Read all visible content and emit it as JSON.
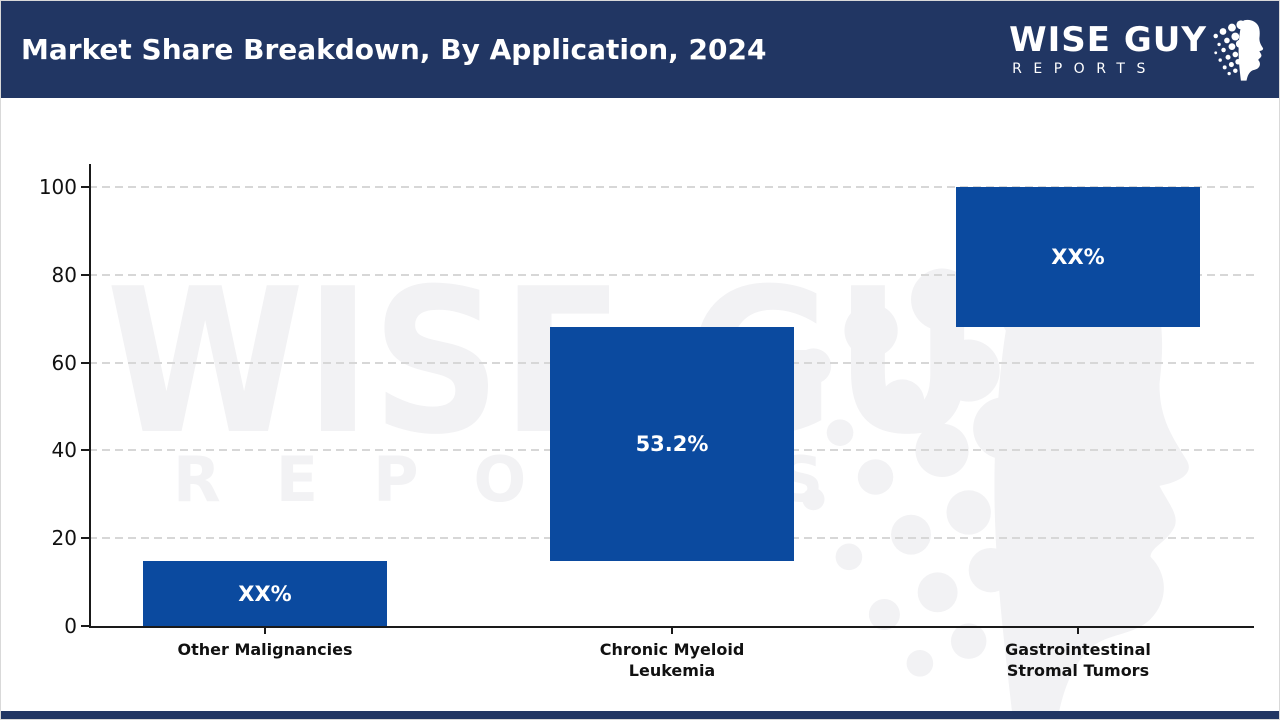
{
  "header": {
    "title": "Market Share Breakdown, By Application, 2024",
    "logo_line1": "WISE GUY",
    "logo_line2": "REPORTS"
  },
  "watermark": {
    "line1": "WISE GUY",
    "line2": "REPORTS"
  },
  "colors": {
    "header_bg": "#213663",
    "bar": "#0b4a9f",
    "bar_label": "#ffffff",
    "grid": "#d7d7d7",
    "axis": "#1a1a1a",
    "watermark": "#f2f2f4"
  },
  "chart_data": {
    "type": "bar",
    "subtype": "floating_segment_bars",
    "title": "Market Share Breakdown, By Application, 2024",
    "unit": "%",
    "categories": [
      "Other Malignancies",
      "Chronic Myeloid Leukemia",
      "Gastrointestinal Stromal Tumors"
    ],
    "category_lines": [
      [
        "Other Malignancies"
      ],
      [
        "Chronic Myeloid",
        "Leukemia"
      ],
      [
        "Gastrointestinal",
        "Stromal Tumors"
      ]
    ],
    "segments": [
      {
        "category": "Other Malignancies",
        "from": 0,
        "to": 14.8,
        "label": "XX%"
      },
      {
        "category": "Chronic Myeloid Leukemia",
        "from": 14.8,
        "to": 68,
        "label": "53.2%"
      },
      {
        "category": "Gastrointestinal Stromal Tumors",
        "from": 68,
        "to": 100,
        "label": "XX%"
      }
    ],
    "xlabel": "",
    "ylabel": "",
    "ylim": [
      0,
      105
    ],
    "yticks": [
      0,
      20,
      40,
      60,
      80,
      100
    ],
    "grid": "dashed-horizontal",
    "legend": "none"
  }
}
